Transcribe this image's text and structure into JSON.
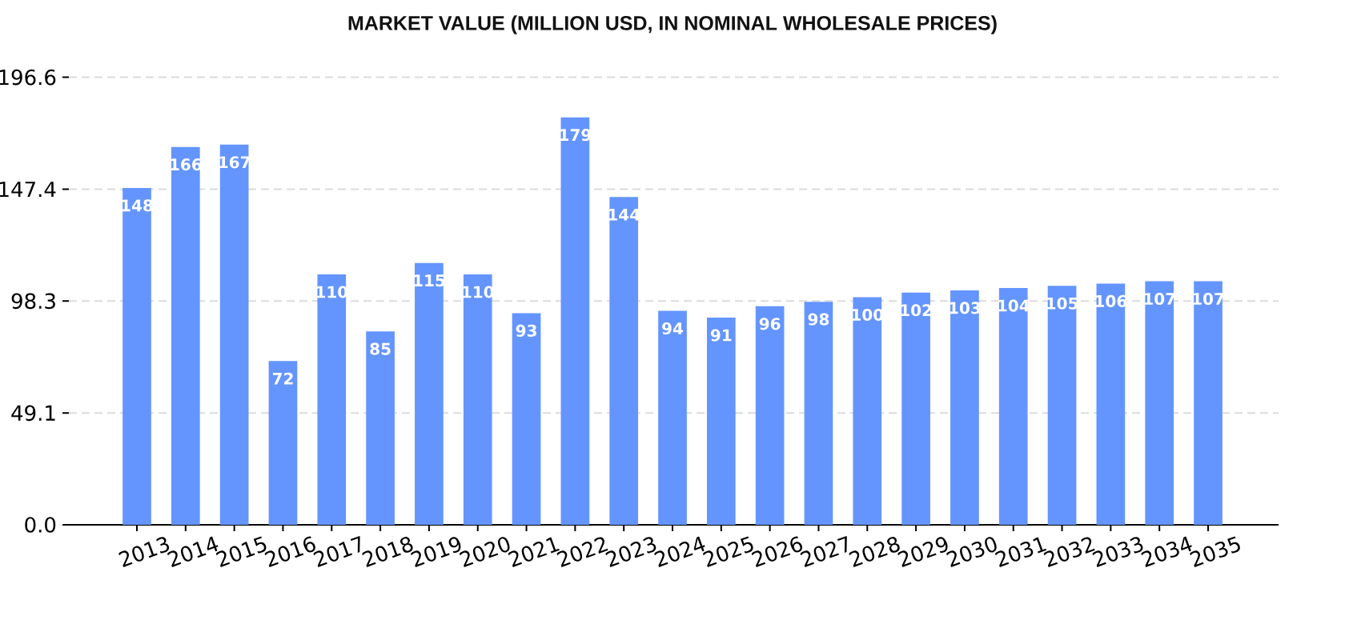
{
  "chart_data": {
    "type": "bar",
    "title": "MARKET VALUE (MILLION USD, IN NOMINAL WHOLESALE PRICES)",
    "categories": [
      "2013",
      "2014",
      "2015",
      "2016",
      "2017",
      "2018",
      "2019",
      "2020",
      "2021",
      "2022",
      "2023",
      "2024",
      "2025",
      "2026",
      "2027",
      "2028",
      "2029",
      "2030",
      "2031",
      "2032",
      "2033",
      "2034",
      "2035"
    ],
    "values": [
      148,
      166,
      167,
      72,
      110,
      85,
      115,
      110,
      93,
      179,
      144,
      94,
      91,
      96,
      98,
      100,
      102,
      103,
      104,
      105,
      106,
      107,
      107
    ],
    "color": "#6495ff",
    "ylim": [
      0,
      196.6
    ],
    "yticks": [
      {
        "value": 0,
        "label": "0.0"
      },
      49.1,
      98.3,
      147.4,
      196.6
    ],
    "grid": "y",
    "data_labels": true
  }
}
